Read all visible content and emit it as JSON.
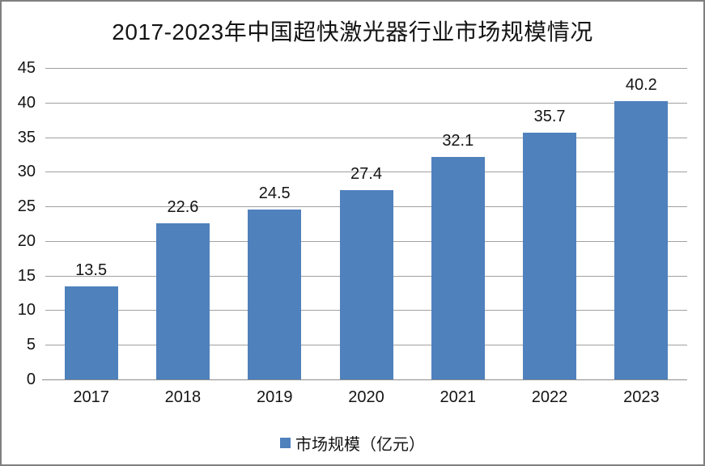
{
  "chart_data": {
    "type": "bar",
    "title": "2017-2023年中国超快激光器行业市场规模情况",
    "categories": [
      "2017",
      "2018",
      "2019",
      "2020",
      "2021",
      "2022",
      "2023"
    ],
    "series": [
      {
        "name": "市场规模（亿元）",
        "values": [
          13.5,
          22.6,
          24.5,
          27.4,
          32.1,
          35.7,
          40.2
        ]
      }
    ],
    "legend": {
      "label": "市场规模（亿元）",
      "position": "bottom"
    },
    "xlabel": "",
    "ylabel": "",
    "ylim": [
      0,
      45
    ],
    "yticks": [
      0,
      5,
      10,
      15,
      20,
      25,
      30,
      35,
      40,
      45
    ],
    "grid": true,
    "colors": {
      "bar": "#4F81BD",
      "gridline": "#A0A0A0",
      "axis_line": "#8C8C8C",
      "text": "#141414",
      "frame_border": "#7F7F7F",
      "background": "#FFFFFF"
    }
  }
}
